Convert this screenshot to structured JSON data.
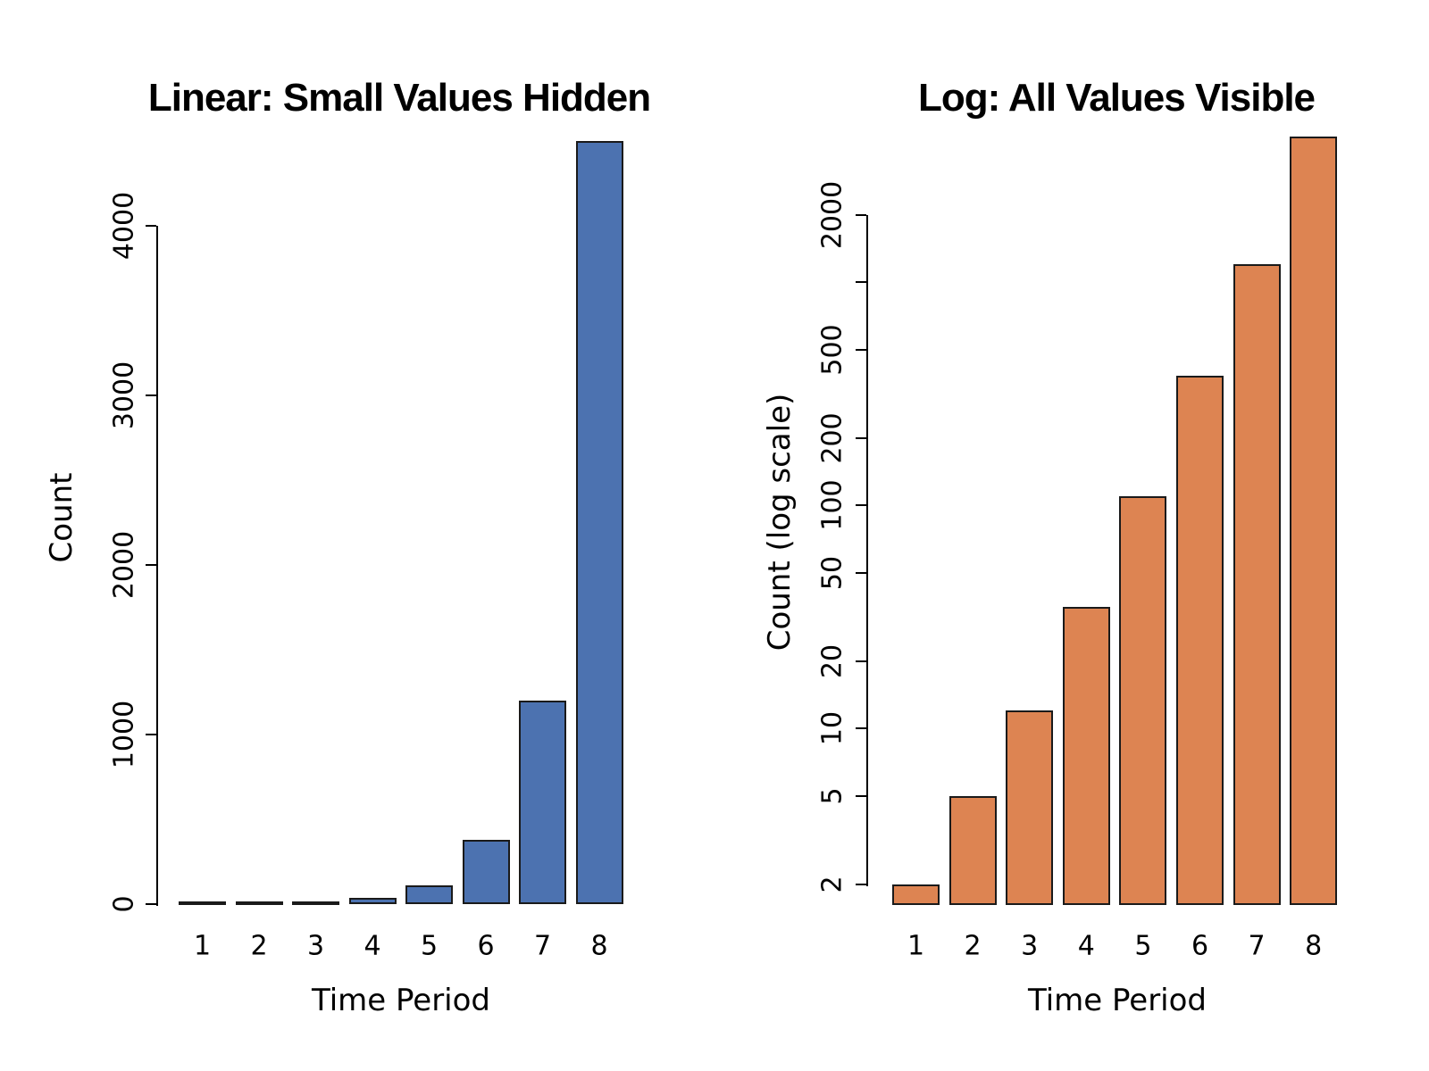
{
  "figure": {
    "background": "#ffffff"
  },
  "chart_data": [
    {
      "type": "bar",
      "title": "Linear: Small Values Hidden",
      "xlabel": "Time Period",
      "ylabel": "Count",
      "yscale": "linear",
      "categories": [
        "1",
        "2",
        "3",
        "4",
        "5",
        "6",
        "7",
        "8"
      ],
      "values": [
        2,
        5,
        12,
        35,
        110,
        380,
        1200,
        4500
      ],
      "yticks": [
        {
          "value": 0,
          "label": "0"
        },
        {
          "value": 1000,
          "label": "1000"
        },
        {
          "value": 2000,
          "label": "2000"
        },
        {
          "value": 3000,
          "label": "3000"
        },
        {
          "value": 4000,
          "label": "4000"
        }
      ],
      "ylim": [
        0,
        4500
      ],
      "grid": false,
      "legend": null,
      "bar_color": "#4C72B0",
      "edge_color": "#1a1a1a"
    },
    {
      "type": "bar",
      "title": "Log: All Values Visible",
      "xlabel": "Time Period",
      "ylabel": "Count (log scale)",
      "yscale": "log",
      "categories": [
        "1",
        "2",
        "3",
        "4",
        "5",
        "6",
        "7",
        "8"
      ],
      "values": [
        2,
        5,
        12,
        35,
        110,
        380,
        1200,
        4500
      ],
      "yticks": [
        {
          "value": 2,
          "label": "2"
        },
        {
          "value": 5,
          "label": "5"
        },
        {
          "value": 10,
          "label": "10"
        },
        {
          "value": 20,
          "label": "20"
        },
        {
          "value": 50,
          "label": "50"
        },
        {
          "value": 100,
          "label": "100"
        },
        {
          "value": 200,
          "label": "200"
        },
        {
          "value": 500,
          "label": "500"
        },
        {
          "value": 1000,
          "label": ""
        },
        {
          "value": 2000,
          "label": "2000"
        }
      ],
      "ylim": [
        2,
        4500
      ],
      "grid": false,
      "legend": null,
      "bar_color": "#DD8452",
      "edge_color": "#1a1a1a"
    }
  ]
}
